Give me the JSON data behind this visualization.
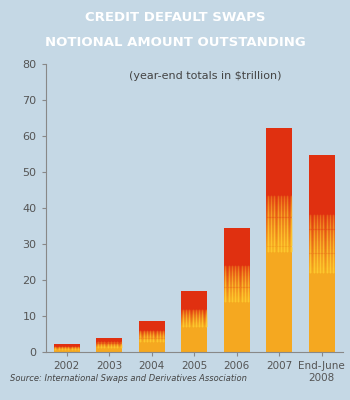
{
  "title_line1": "CREDIT DEFAULT SWAPS",
  "title_line2": "NOTIONAL AMOUNT OUTSTANDING",
  "subtitle": "(year-end totals in $trillion)",
  "source": "Source: International Swaps and Derivatives Association",
  "categories": [
    "2002",
    "2003",
    "2004",
    "2005",
    "2006",
    "2007",
    "End-June\n2008"
  ],
  "total_values": [
    2.2,
    4.0,
    8.5,
    17.0,
    34.5,
    62.2,
    54.6
  ],
  "orange_top": [
    0.6,
    1.2,
    3.0,
    7.0,
    14.0,
    28.0,
    22.0
  ],
  "red_top": [
    2.2,
    4.0,
    8.5,
    17.0,
    34.5,
    62.2,
    54.6
  ],
  "color_orange": "#F5A820",
  "color_yellow_orange": "#F5C040",
  "color_red_orange": "#E03010",
  "title_bg": "#1B6A90",
  "title_color": "#FFFFFF",
  "chart_bg": "#C5D8E5",
  "source_bg": "#D8E5EE",
  "axis_label_color": "#555555",
  "ylim": [
    0,
    80
  ],
  "yticks": [
    0,
    10,
    20,
    30,
    40,
    50,
    60,
    70,
    80
  ],
  "bar_width": 0.62
}
